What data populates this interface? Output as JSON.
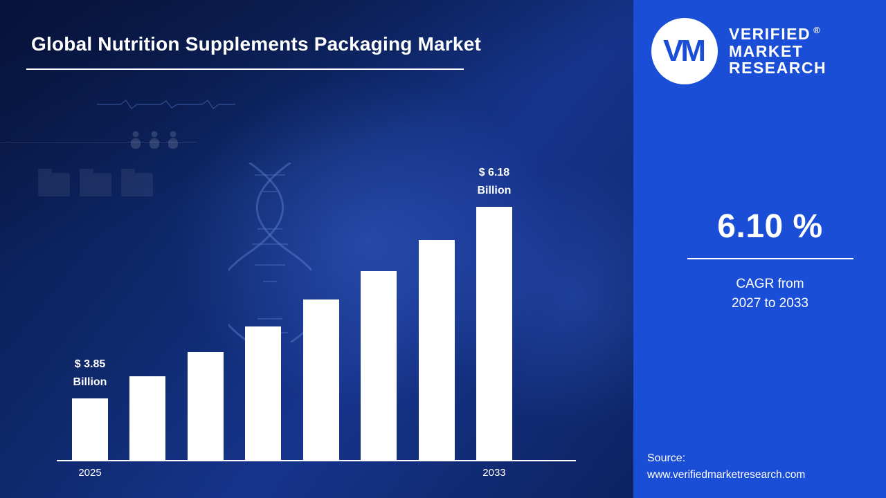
{
  "title": "Global Nutrition Supplements Packaging Market",
  "brand": {
    "logo_monogram": "VM",
    "name_lines": [
      "VERIFIED",
      "MARKET",
      "RESEARCH"
    ],
    "registered_mark": "®"
  },
  "stats": {
    "cagr_value": "6.10 %",
    "cagr_caption_line1": "CAGR from",
    "cagr_caption_line2": "2027 to 2033"
  },
  "source": {
    "label": "Source:",
    "url": "www.verifiedmarketresearch.com"
  },
  "chart_data": {
    "type": "bar",
    "title": "Global Nutrition Supplements Packaging Market",
    "categories": [
      "2025",
      "",
      "",
      "",
      "",
      "",
      "",
      "2033"
    ],
    "values": [
      3.85,
      4.12,
      4.41,
      4.72,
      5.05,
      5.4,
      5.78,
      6.18
    ],
    "unit": "USD Billion",
    "annotations": [
      {
        "bar_index": 0,
        "value": "$ 3.85",
        "unit": "Billion"
      },
      {
        "bar_index": 7,
        "value": "$ 6.18",
        "unit": "Billion"
      }
    ],
    "xlabel": "",
    "ylabel": "",
    "ylim": [
      3.1,
      6.18
    ],
    "grid": false,
    "legend": "none",
    "bar_color": "#ffffff"
  },
  "colors": {
    "left_background": "#0e2767",
    "right_background": "#1b4ed6",
    "bar": "#ffffff",
    "text": "#ffffff"
  }
}
